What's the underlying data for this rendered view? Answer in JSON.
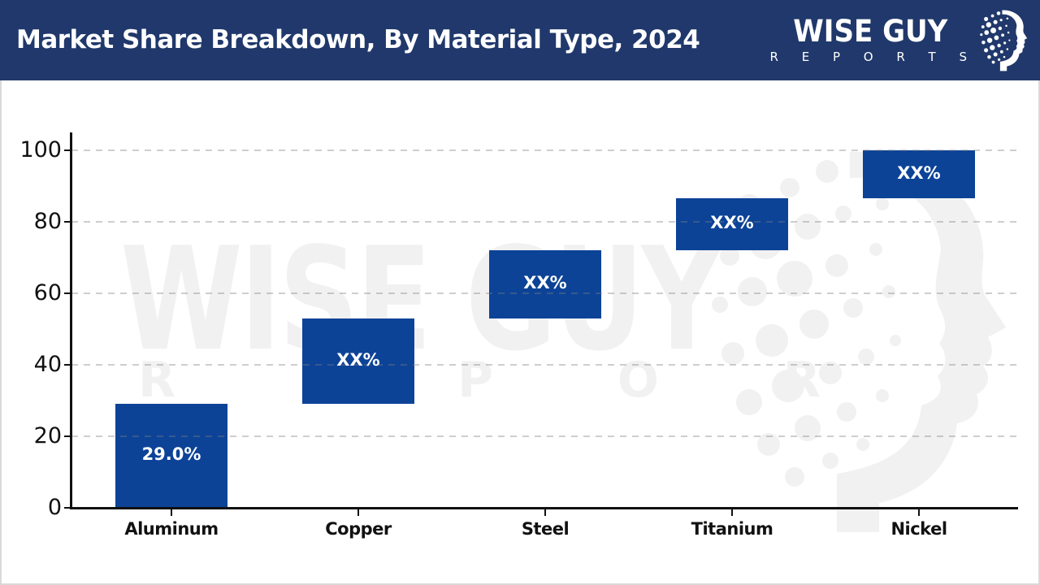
{
  "header": {
    "title": "Market Share Breakdown, By Material Type, 2024",
    "logo": {
      "line1": "WISE GUY",
      "line2": "R E P O R T S"
    }
  },
  "watermark": {
    "line1": "WISE GUY",
    "line2": "R E P O R T S"
  },
  "colors": {
    "header_bg": "#20386B",
    "bar": "#0C4397",
    "bar_label_text": "#FFFFFF",
    "axis_text": "#111111",
    "gridline": "#c9c9c9",
    "watermark": "#f1f1f1",
    "frame_border": "#d9d9d9"
  },
  "chart_data": {
    "type": "bar",
    "subtype": "waterfall",
    "title": "Market Share Breakdown, By Material Type, 2024",
    "xlabel": "",
    "ylabel": "",
    "categories": [
      "Aluminum",
      "Copper",
      "Steel",
      "Titanium",
      "Nickel"
    ],
    "segments": [
      {
        "category": "Aluminum",
        "start": 0,
        "end": 29,
        "value": 29.0,
        "display": "29.0%"
      },
      {
        "category": "Copper",
        "start": 29,
        "end": 53,
        "value": 24.0,
        "display": "XX%"
      },
      {
        "category": "Steel",
        "start": 53,
        "end": 72,
        "value": 19.0,
        "display": "XX%"
      },
      {
        "category": "Titanium",
        "start": 72,
        "end": 86.5,
        "value": 14.5,
        "display": "XX%"
      },
      {
        "category": "Nickel",
        "start": 86.5,
        "end": 100,
        "value": 13.5,
        "display": "XX%"
      }
    ],
    "yticks": [
      0,
      20,
      40,
      60,
      80,
      100
    ],
    "ylim": [
      0,
      105
    ],
    "grid": true,
    "grid_style": "dashed",
    "legend": "none"
  }
}
